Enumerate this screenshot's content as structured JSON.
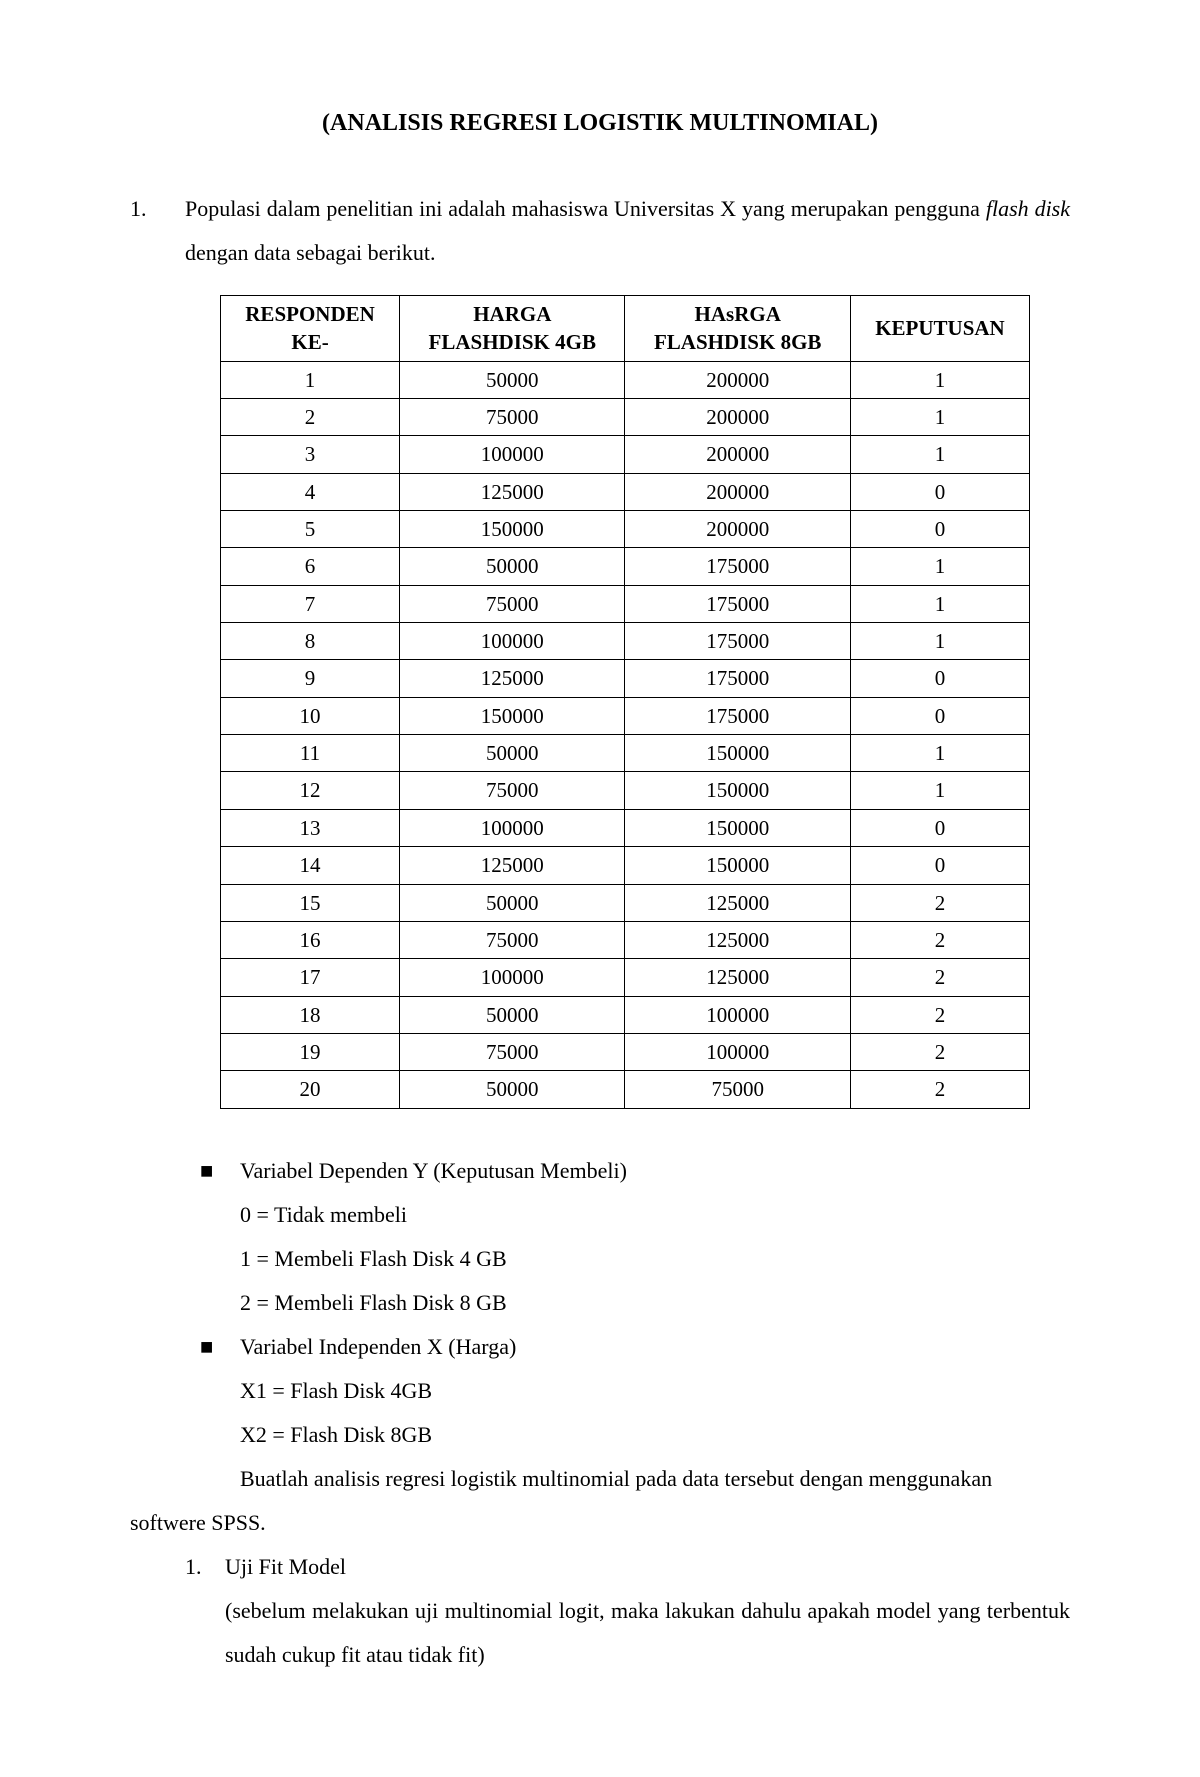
{
  "title": "(ANALISIS REGRESI LOGISTIK MULTINOMIAL)",
  "para1_num": "1.",
  "para1_pre": "Populasi dalam penelitian ini adalah mahasiswa Universitas X yang merupakan pengguna ",
  "para1_it": "flash disk",
  "para1_post": " dengan data sebagai berikut.",
  "table": {
    "headers": {
      "c1a": "RESPONDEN",
      "c1b": "KE-",
      "c2a": "HARGA",
      "c2b": "FLASHDISK 4GB",
      "c3a": "HAsRGA",
      "c3b": "FLASHDISK 8GB",
      "c4": "KEPUTUSAN"
    },
    "rows": [
      {
        "r": "1",
        "h4": "50000",
        "h8": "200000",
        "k": "1"
      },
      {
        "r": "2",
        "h4": "75000",
        "h8": "200000",
        "k": "1"
      },
      {
        "r": "3",
        "h4": "100000",
        "h8": "200000",
        "k": "1"
      },
      {
        "r": "4",
        "h4": "125000",
        "h8": "200000",
        "k": "0"
      },
      {
        "r": "5",
        "h4": "150000",
        "h8": "200000",
        "k": "0"
      },
      {
        "r": "6",
        "h4": "50000",
        "h8": "175000",
        "k": "1"
      },
      {
        "r": "7",
        "h4": "75000",
        "h8": "175000",
        "k": "1"
      },
      {
        "r": "8",
        "h4": "100000",
        "h8": "175000",
        "k": "1"
      },
      {
        "r": "9",
        "h4": "125000",
        "h8": "175000",
        "k": "0"
      },
      {
        "r": "10",
        "h4": "150000",
        "h8": "175000",
        "k": "0"
      },
      {
        "r": "11",
        "h4": "50000",
        "h8": "150000",
        "k": "1"
      },
      {
        "r": "12",
        "h4": "75000",
        "h8": "150000",
        "k": "1"
      },
      {
        "r": "13",
        "h4": "100000",
        "h8": "150000",
        "k": "0"
      },
      {
        "r": "14",
        "h4": "125000",
        "h8": "150000",
        "k": "0"
      },
      {
        "r": "15",
        "h4": "50000",
        "h8": "125000",
        "k": "2"
      },
      {
        "r": "16",
        "h4": "75000",
        "h8": "125000",
        "k": "2"
      },
      {
        "r": "17",
        "h4": "100000",
        "h8": "125000",
        "k": "2"
      },
      {
        "r": "18",
        "h4": "50000",
        "h8": "100000",
        "k": "2"
      },
      {
        "r": "19",
        "h4": "75000",
        "h8": "100000",
        "k": "2"
      },
      {
        "r": "20",
        "h4": "50000",
        "h8": "75000",
        "k": "2"
      }
    ]
  },
  "bullet1": "Variabel Dependen Y (Keputusan  Membeli)",
  "b1_s1": "0 = Tidak membeli",
  "b1_s2": "1 = Membeli Flash Disk 4 GB",
  "b1_s3": "2 = Membeli Flash Disk 8 GB",
  "bullet2": "Variabel Independen X (Harga)",
  "b2_s1": "X1 = Flash Disk 4GB",
  "b2_s2": "X2 = Flash Disk 8GB",
  "closing1": "Buatlah analisis regresi logistik multinomial pada data tersebut dengan menggunakan",
  "closing2": "softwere SPSS.",
  "nested_num": "1.",
  "nested_title": "Uji Fit Model",
  "nested_sub": "(sebelum melakukan uji multinomial logit, maka lakukan dahulu apakah model yang terbentuk sudah cukup fit atau tidak fit)",
  "marker": "■"
}
